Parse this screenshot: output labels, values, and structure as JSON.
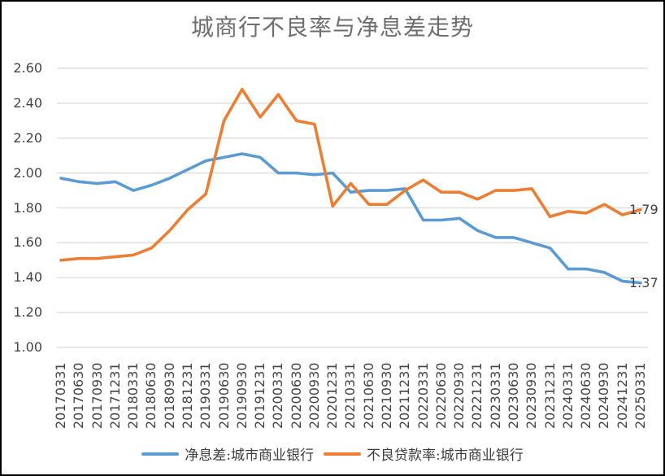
{
  "chart_data": {
    "type": "line",
    "title": "城商行不良率与净息差走势",
    "categories": [
      "20170331",
      "20170630",
      "20170930",
      "20171231",
      "20180331",
      "20180630",
      "20180930",
      "20181231",
      "20190331",
      "20190630",
      "20190930",
      "20191231",
      "20200331",
      "20200630",
      "20200930",
      "20201231",
      "20210331",
      "20210630",
      "20210930",
      "20211231",
      "20220331",
      "20220630",
      "20220930",
      "20221231",
      "20230331",
      "20230630",
      "20230930",
      "20231231",
      "20240331",
      "20240630",
      "20240930",
      "20241231",
      "20250331"
    ],
    "series": [
      {
        "name": "净息差:城市商业银行",
        "color": "#5B9BD5",
        "end_label": "1.37",
        "values": [
          1.97,
          1.95,
          1.94,
          1.95,
          1.9,
          1.93,
          1.97,
          2.02,
          2.07,
          2.09,
          2.11,
          2.09,
          2.0,
          2.0,
          1.99,
          2.0,
          1.89,
          1.9,
          1.9,
          1.91,
          1.73,
          1.73,
          1.74,
          1.67,
          1.63,
          1.63,
          1.6,
          1.57,
          1.45,
          1.45,
          1.43,
          1.38,
          1.37
        ]
      },
      {
        "name": "不良贷款率:城市商业银行",
        "color": "#ED7D31",
        "end_label": "1.79",
        "values": [
          1.5,
          1.51,
          1.51,
          1.52,
          1.53,
          1.57,
          1.67,
          1.79,
          1.88,
          2.3,
          2.48,
          2.32,
          2.45,
          2.3,
          2.28,
          1.81,
          1.94,
          1.82,
          1.82,
          1.9,
          1.96,
          1.89,
          1.89,
          1.85,
          1.9,
          1.9,
          1.91,
          1.75,
          1.78,
          1.77,
          1.82,
          1.76,
          1.79
        ]
      }
    ],
    "y_ticks": [
      "1.00",
      "1.20",
      "1.40",
      "1.60",
      "1.80",
      "2.00",
      "2.20",
      "2.40",
      "2.60"
    ],
    "ylim": [
      1.0,
      2.6
    ],
    "grid": true,
    "legend_position": "bottom",
    "gridline_color": "#D9D9D9",
    "axis_text_color": "#444444",
    "title_color": "#6E6E6E",
    "end_label_color": "#404040"
  }
}
